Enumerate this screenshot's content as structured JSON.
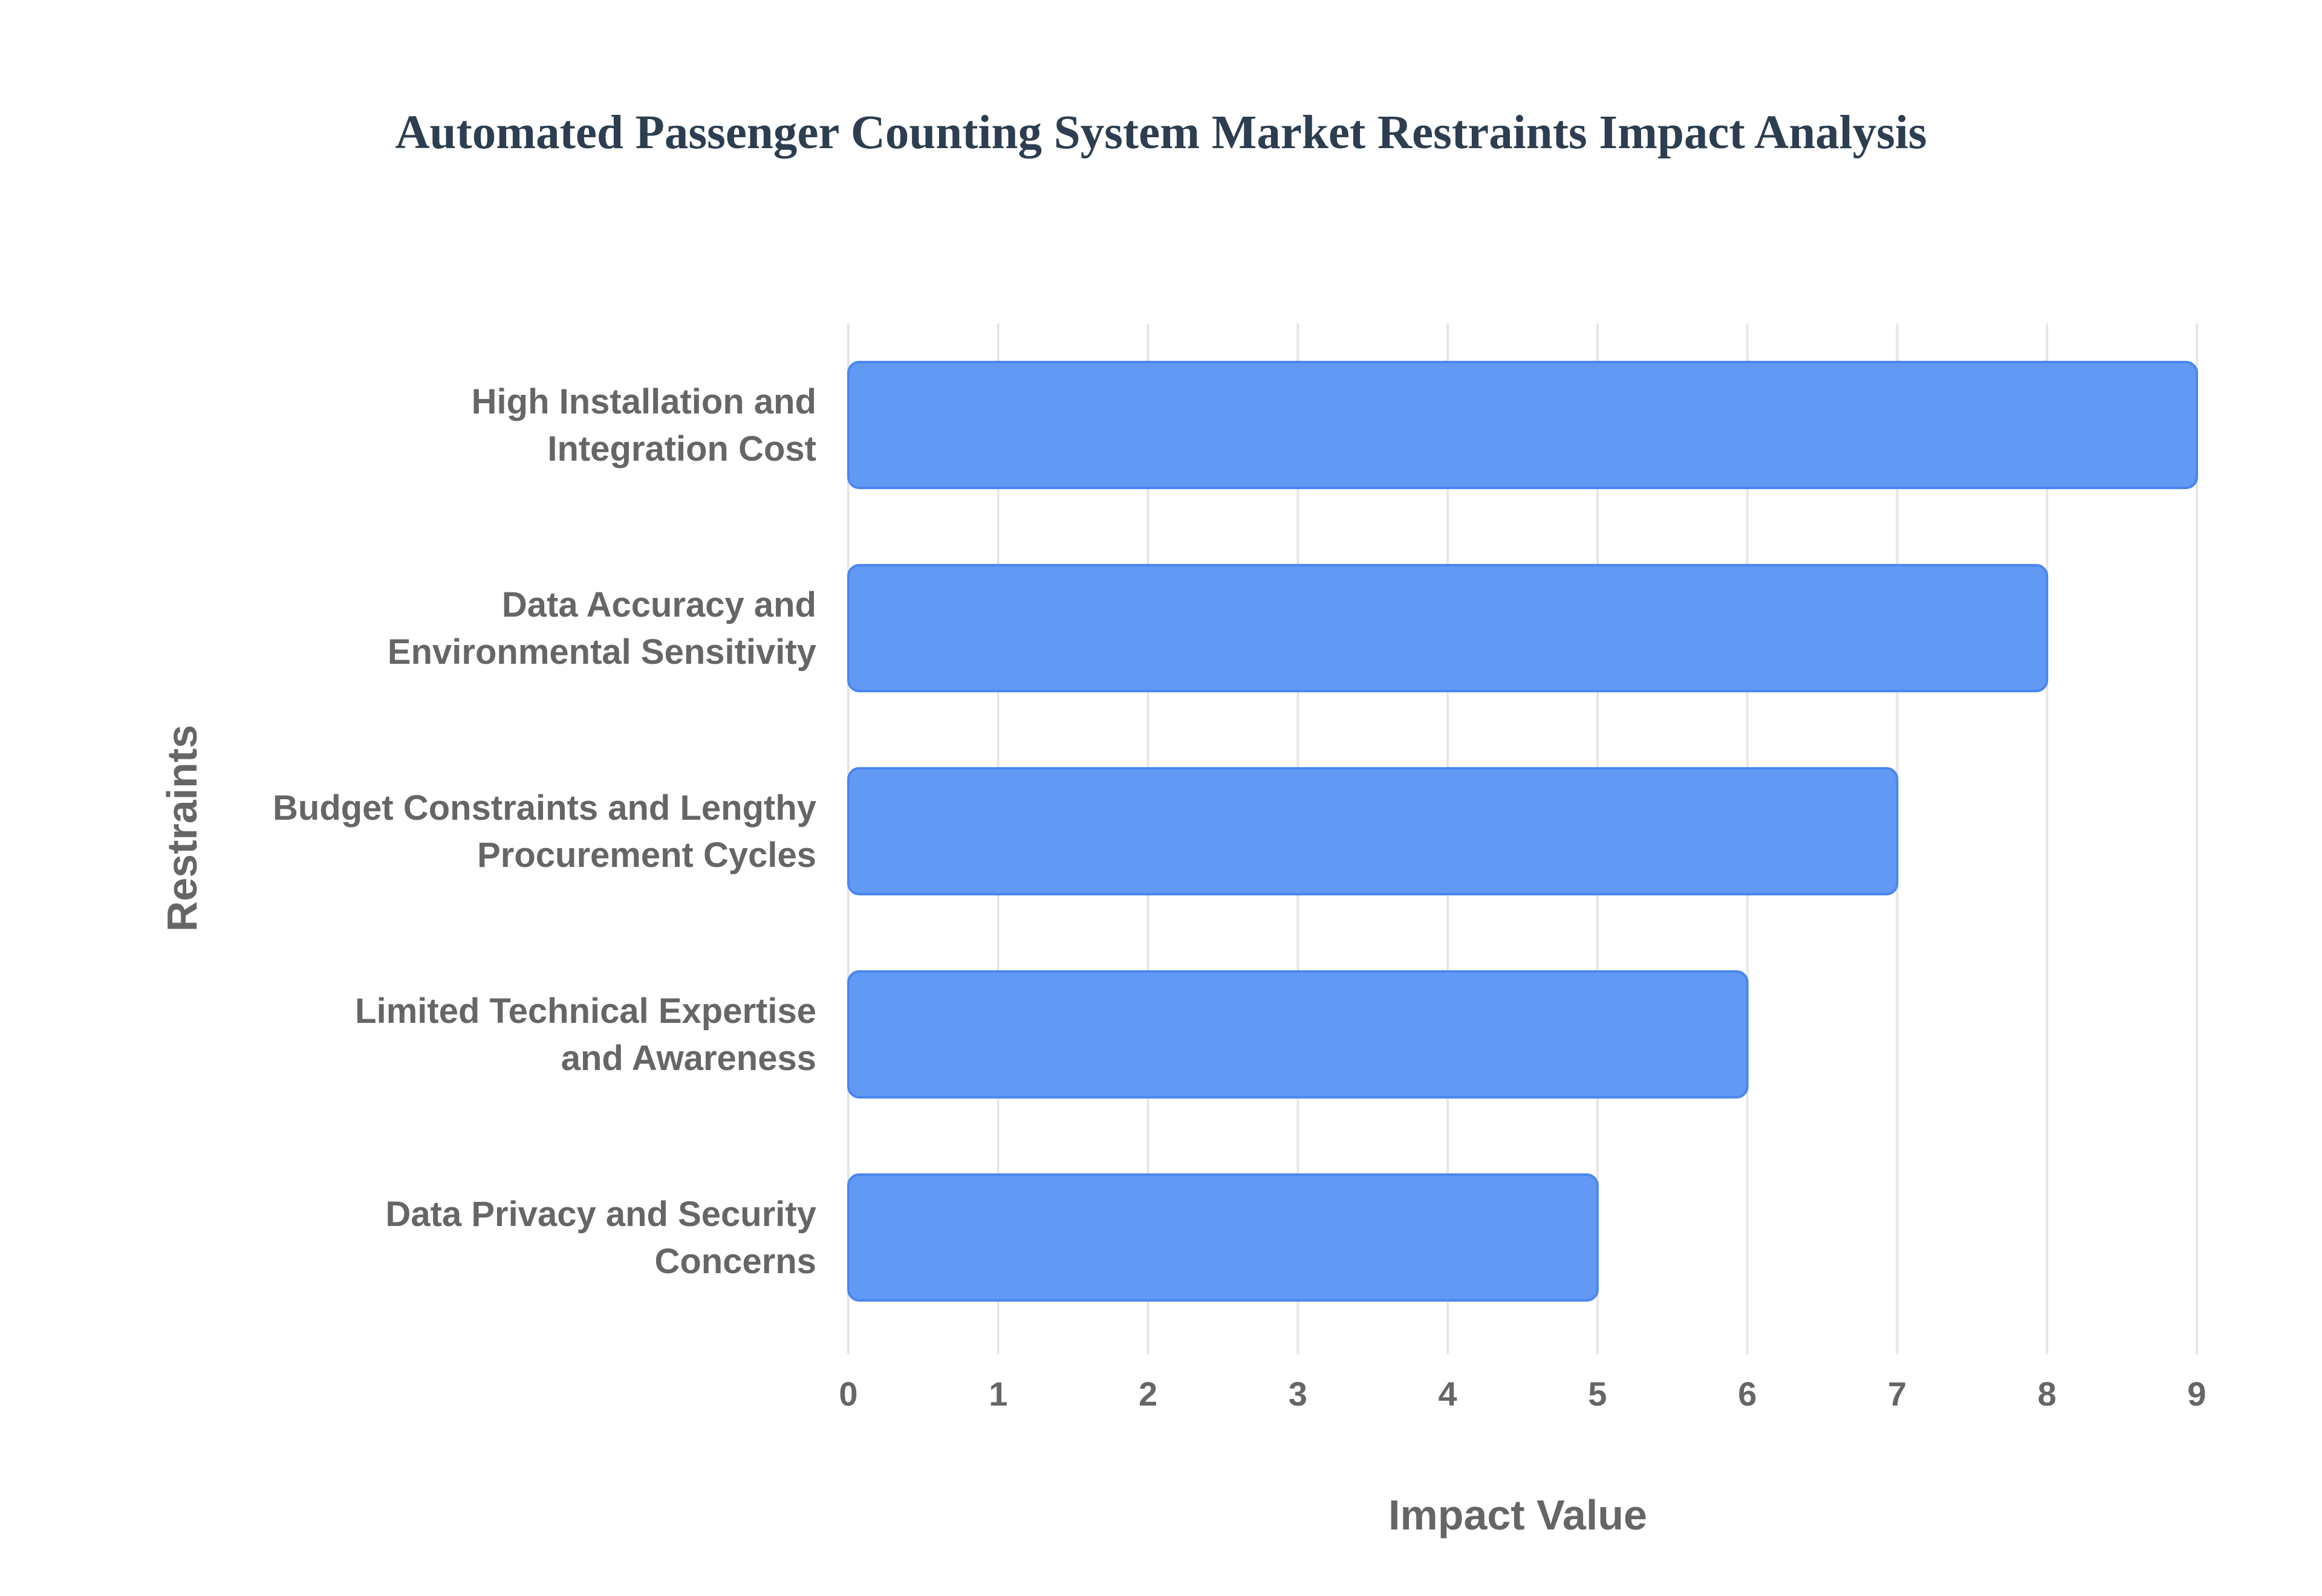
{
  "chart_data": {
    "type": "bar",
    "orientation": "horizontal",
    "title": "Automated Passenger Counting System Market Restraints Impact Analysis",
    "xlabel": "Impact Value",
    "ylabel": "Restraints",
    "xlim": [
      0,
      9
    ],
    "x_ticks": [
      "0",
      "1",
      "2",
      "3",
      "4",
      "5",
      "6",
      "7",
      "8",
      "9"
    ],
    "categories": [
      [
        "High Installation and",
        "Integration Cost"
      ],
      [
        "Data Accuracy and",
        "Environmental Sensitivity"
      ],
      [
        "Budget Constraints and Lengthy",
        "Procurement Cycles"
      ],
      [
        "Limited Technical Expertise",
        "and Awareness"
      ],
      [
        "Data Privacy and Security",
        "Concerns"
      ]
    ],
    "values": [
      9,
      8,
      7,
      6,
      5
    ],
    "grid": true,
    "legend": "none",
    "bar_color": "#6199f5",
    "bar_border_color": "#4a86ef"
  }
}
